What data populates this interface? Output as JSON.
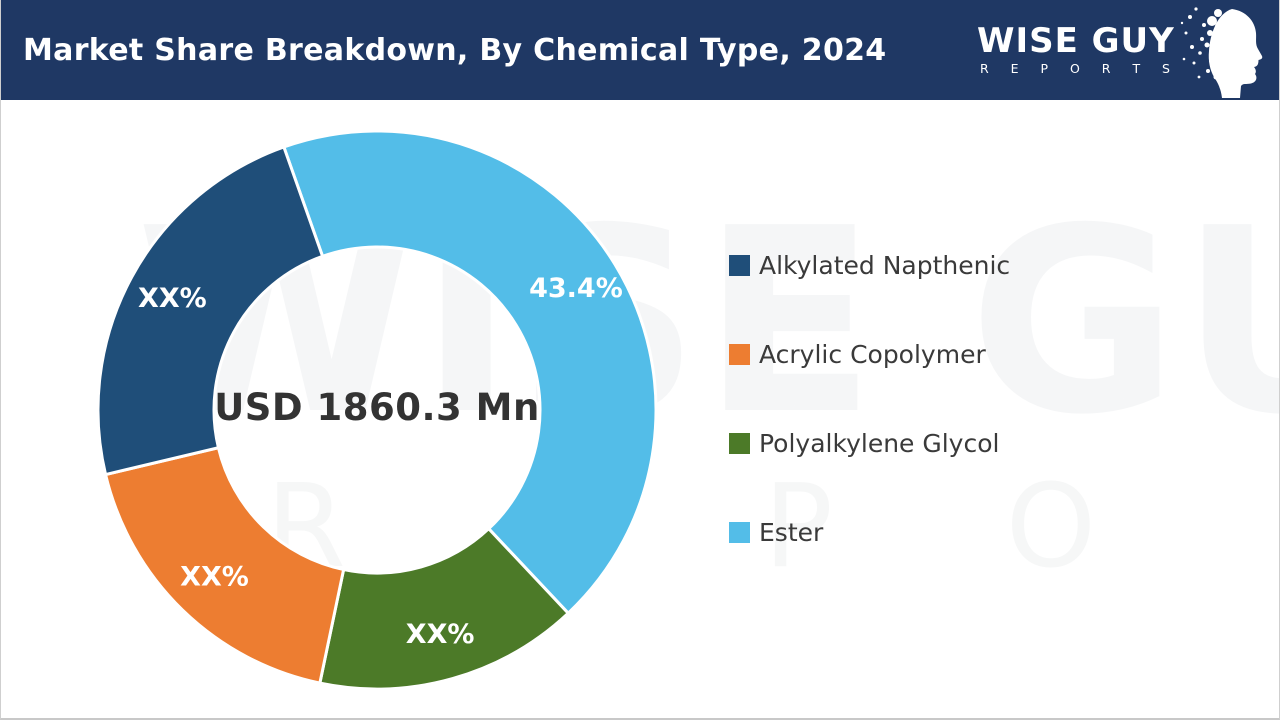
{
  "header": {
    "title": "Market Share Breakdown, By Chemical Type, 2024",
    "logo": {
      "wordmark": "WISE GUY",
      "subtext": "R E P O R T S"
    }
  },
  "watermark": {
    "line1": "WISE GUY",
    "line2": "R E P O R T S"
  },
  "chart_data": {
    "type": "pie",
    "subtype": "donut",
    "title": "Market Share Breakdown, By Chemical Type, 2024",
    "center_label": "USD 1860.3 Mn",
    "start_angle_deg": 109.5,
    "direction": "clockwise",
    "legend_position": "right",
    "slices": [
      {
        "label": "Alkylated Napthenic",
        "display_value": "XX%",
        "value_pct": 23.3,
        "color": "#1F4E79"
      },
      {
        "label": "Acrylic Copolymer",
        "display_value": "XX%",
        "value_pct": 18.0,
        "color": "#ED7D31"
      },
      {
        "label": "Polyalkylene Glycol",
        "display_value": "XX%",
        "value_pct": 15.3,
        "color": "#4C7A28"
      },
      {
        "label": "Ester",
        "display_value": "43.4%",
        "value_pct": 43.4,
        "color": "#53BDE8"
      }
    ]
  },
  "colors": {
    "header_bg": "#1F3864",
    "legend_text": "#3A3A3A",
    "center_text": "#333333",
    "slice_divider": "#FFFFFF"
  }
}
